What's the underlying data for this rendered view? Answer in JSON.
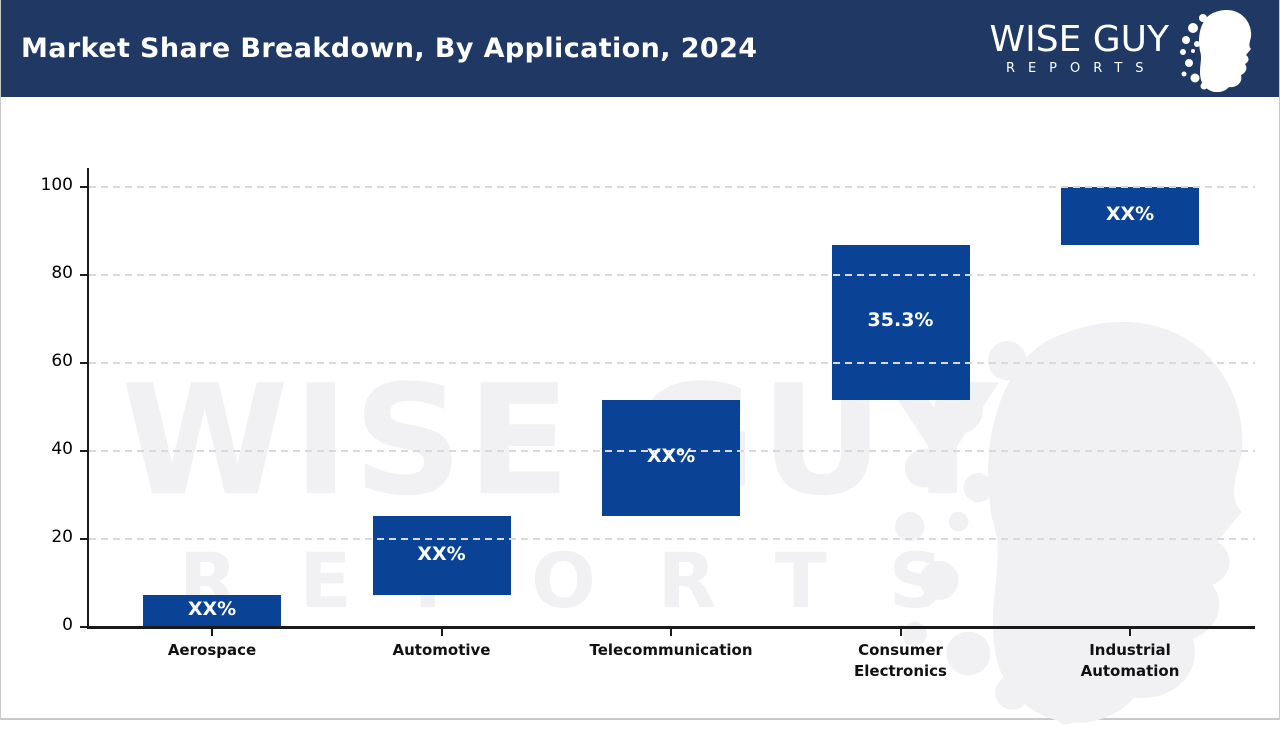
{
  "header": {
    "title": "Market Share Breakdown, By Application, 2024",
    "bg_color": "#1f3864",
    "logo": {
      "line1": "WISE GUY",
      "line2": "REPORTS"
    }
  },
  "watermark": {
    "line1": "WISE GUY",
    "line2": "REPORTS"
  },
  "chart_data": {
    "type": "bar",
    "subtype": "waterfall",
    "title": "Market Share Breakdown, By Application, 2024",
    "categories": [
      "Aerospace",
      "Automotive",
      "Telecommunication",
      "Consumer Electronics",
      "Industrial Automation"
    ],
    "category_label_lines": [
      [
        "Aerospace"
      ],
      [
        "Automotive"
      ],
      [
        "Telecommunication"
      ],
      [
        "Consumer",
        "Electronics"
      ],
      [
        "Industrial",
        "Automation"
      ]
    ],
    "segments": [
      {
        "category": "Aerospace",
        "start": 0,
        "end": 7.3,
        "label": "XX%"
      },
      {
        "category": "Automotive",
        "start": 7.3,
        "end": 25.2,
        "label": "XX%"
      },
      {
        "category": "Telecommunication",
        "start": 25.2,
        "end": 51.6,
        "label": "XX%"
      },
      {
        "category": "Consumer Electronics",
        "start": 51.6,
        "end": 86.9,
        "label": "35.3%"
      },
      {
        "category": "Industrial Automation",
        "start": 86.9,
        "end": 100,
        "label": "XX%"
      }
    ],
    "ylim": [
      0,
      100
    ],
    "yticks": [
      0,
      20,
      40,
      60,
      80,
      100
    ],
    "grid": "horizontal-dashed-above-bars",
    "legend": "none",
    "bar_color": "#0a4296",
    "bar_label_color": "#ffffff",
    "axis_color": "#1a1a1a",
    "grid_color": "#d9d9d9",
    "tick_label_color": "#000000",
    "category_label_color": "#111111"
  }
}
